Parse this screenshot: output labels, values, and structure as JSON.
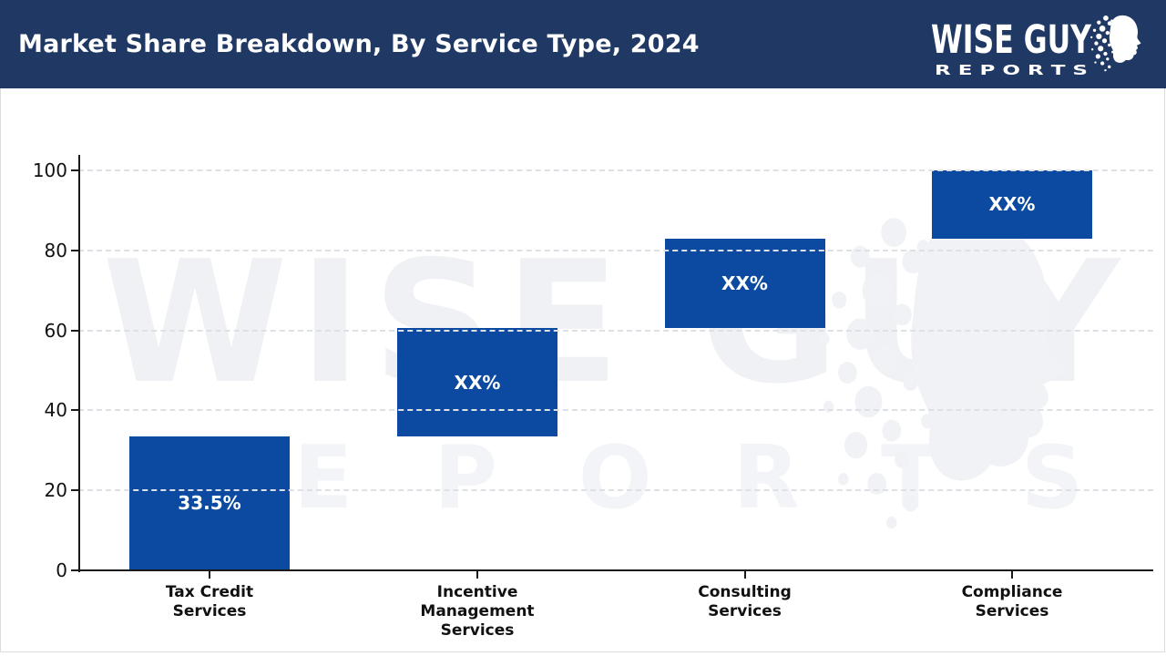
{
  "header": {
    "title": "Market Share Breakdown, By Service Type, 2024",
    "logo": {
      "line1": "WISE GUY",
      "line2": "R E P O R T S"
    }
  },
  "watermark": {
    "line1": "WISE GUY",
    "line2": "R E P O R T S"
  },
  "chart_data": {
    "type": "bar",
    "subtype": "floating-waterfall",
    "title": "Market Share Breakdown, By Service Type, 2024",
    "categories": [
      "Tax Credit Services",
      "Incentive Management Services",
      "Consulting Services",
      "Compliance Services"
    ],
    "category_lines": [
      [
        "Tax Credit",
        "Services"
      ],
      [
        "Incentive",
        "Management",
        "Services"
      ],
      [
        "Consulting",
        "Services"
      ],
      [
        "Compliance",
        "Services"
      ]
    ],
    "series": [
      {
        "name": "Market share",
        "segments": [
          {
            "category": "Tax Credit Services",
            "start": 0,
            "end": 33.5,
            "label": "33.5%"
          },
          {
            "category": "Incentive Management Services",
            "start": 33.5,
            "end": 60.5,
            "label": "XX%"
          },
          {
            "category": "Consulting Services",
            "start": 60.5,
            "end": 83,
            "label": "XX%"
          },
          {
            "category": "Compliance Services",
            "start": 83,
            "end": 100,
            "label": "XX%"
          }
        ]
      }
    ],
    "xlabel": "",
    "ylabel": "",
    "ylim": [
      0,
      100
    ],
    "yticks": [
      0,
      20,
      40,
      60,
      80,
      100
    ],
    "grid": "horizontal-dashed",
    "legend": "none",
    "colors": {
      "bar": "#0b4aa0",
      "bar_label": "#ffffff",
      "axis": "#1a1a1a",
      "grid": "#dde0e5",
      "header_bg": "#1f3864",
      "watermark": "#f0f1f4"
    }
  }
}
